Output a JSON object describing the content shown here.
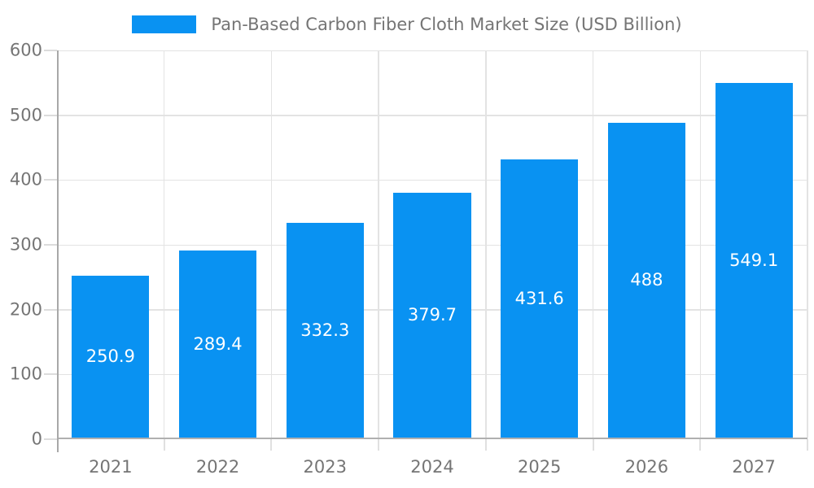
{
  "legend": {
    "label": "Pan-Based Carbon Fiber Cloth Market Size (USD Billion)"
  },
  "chart_data": {
    "type": "bar",
    "title": "Pan-Based Carbon Fiber Cloth Market Size (USD Billion)",
    "categories": [
      "2021",
      "2022",
      "2023",
      "2024",
      "2025",
      "2026",
      "2027"
    ],
    "values": [
      250.9,
      289.4,
      332.3,
      379.7,
      431.6,
      488,
      549.1
    ],
    "value_labels": [
      "250.9",
      "289.4",
      "332.3",
      "379.7",
      "431.6",
      "488",
      "549.1"
    ],
    "xlabel": "",
    "ylabel": "",
    "ylim": [
      0,
      600
    ],
    "y_ticks": [
      0,
      100,
      200,
      300,
      400,
      500,
      600
    ],
    "grid": true,
    "legend_position": "top",
    "bar_color": "#0992f2",
    "value_label_color": "#ffffff",
    "axis_text_color": "#757575"
  }
}
